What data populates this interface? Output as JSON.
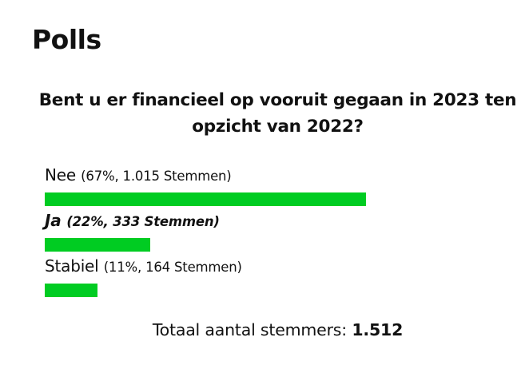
{
  "page": {
    "title": "Polls"
  },
  "poll": {
    "question": "Bent u er financieel op vooruit gegaan in 2023 ten opzicht van 2022?",
    "bar_color": "#00cc22",
    "options": [
      {
        "label": "Nee",
        "detail": "(67%, 1.015 Stemmen)",
        "percent": 67,
        "votes": "1.015",
        "selected": false
      },
      {
        "label": "Ja",
        "detail": "(22%, 333 Stemmen)",
        "percent": 22,
        "votes": "333",
        "selected": true
      },
      {
        "label": "Stabiel",
        "detail": "(11%, 164 Stemmen)",
        "percent": 11,
        "votes": "164",
        "selected": false
      }
    ],
    "total_label": "Totaal aantal stemmers:",
    "total_count": "1.512"
  }
}
